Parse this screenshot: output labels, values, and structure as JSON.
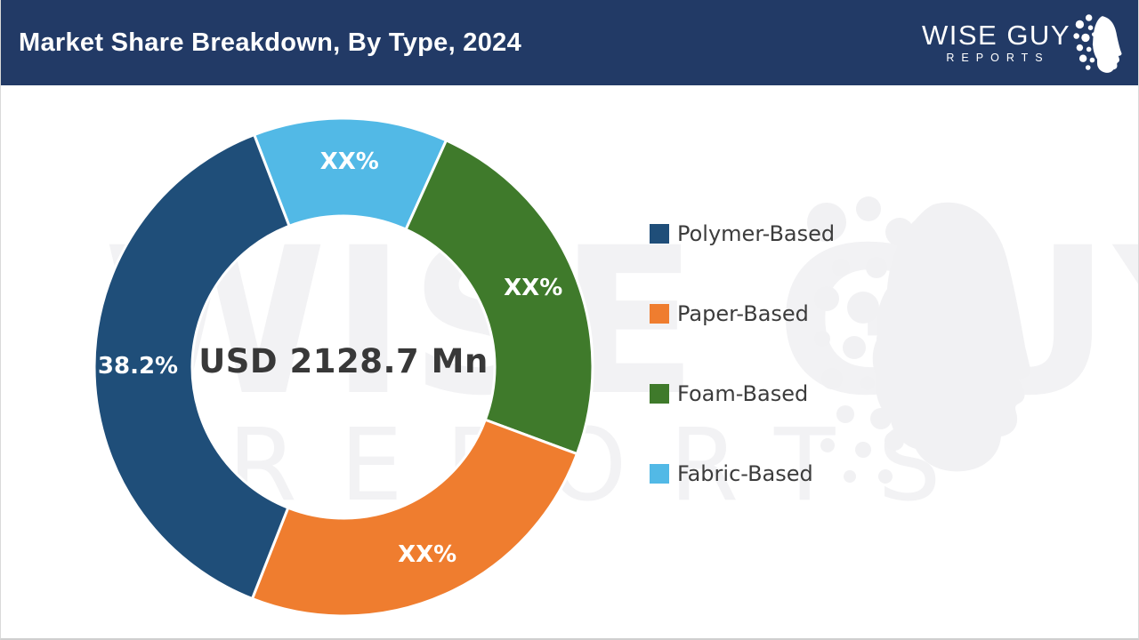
{
  "header": {
    "title": "Market Share Breakdown, By Type, 2024"
  },
  "logo": {
    "line1": "WISE GUY",
    "line2": "REPORTS"
  },
  "watermark": {
    "line1": "WISE GUY",
    "line2": "REPORTS"
  },
  "colors": {
    "header_bg": "#223A66",
    "polymer_blue": "#1F4E79",
    "paper_orange": "#EF7D2F",
    "foam_green": "#3F7A2B",
    "fabric_lightblue": "#52B9E6",
    "watermark_gray": "#F2F2F4",
    "center_text": "#383838"
  },
  "chart_data": {
    "type": "pie",
    "subtype": "donut",
    "title": "Market Share Breakdown, By Type, 2024",
    "center_label": "USD 2128.7 Mn",
    "start_angle_deg": -21,
    "legend_position": "right",
    "segments": [
      {
        "name": "Fabric-Based",
        "share_pct": 12.6,
        "label": "XX%",
        "color": "#52B9E6"
      },
      {
        "name": "Foam-Based",
        "share_pct": 23.9,
        "label": "XX%",
        "color": "#3F7A2B"
      },
      {
        "name": "Paper-Based",
        "share_pct": 25.3,
        "label": "XX%",
        "color": "#EF7D2F"
      },
      {
        "name": "Polymer-Based",
        "share_pct": 38.2,
        "label": "38.2%",
        "color": "#1F4E79"
      }
    ]
  },
  "legend": {
    "items": [
      {
        "label": "Polymer-Based",
        "color": "#1F4E79"
      },
      {
        "label": "Paper-Based",
        "color": "#EF7D2F"
      },
      {
        "label": "Foam-Based",
        "color": "#3F7A2B"
      },
      {
        "label": "Fabric-Based",
        "color": "#52B9E6"
      }
    ]
  }
}
